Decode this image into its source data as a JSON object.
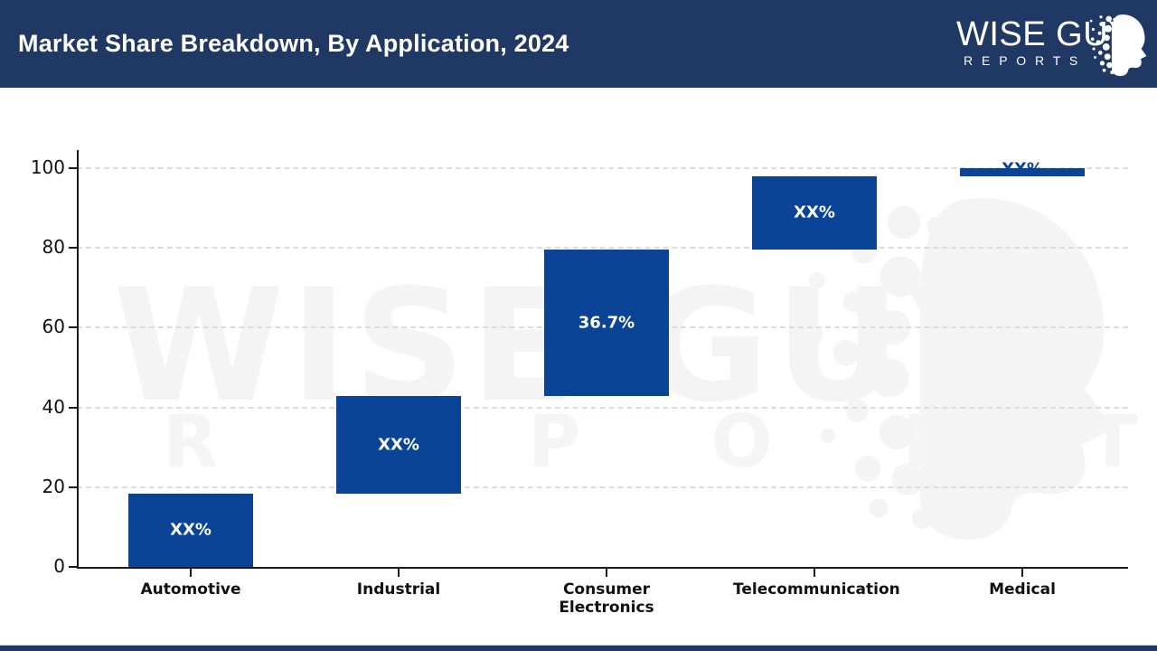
{
  "header": {
    "title": "Market Share Breakdown, By Application, 2024",
    "logo": {
      "name": "WISE GUY",
      "sub": "R E P O R T S"
    }
  },
  "watermark": {
    "line1": "WISE GUY",
    "line2": "R E P O R T S"
  },
  "colors": {
    "header_bg": "#1F3864",
    "footer_bg": "#1F3864",
    "bar": "#0B4397",
    "grid": "#dcdcdc",
    "axis": "#1a1a1a",
    "watermark": "#f4f4f4",
    "title_text": "#ffffff",
    "bar_label_light": "#ffffff"
  },
  "chart_data": {
    "type": "bar",
    "subtype": "waterfall",
    "title": "Market Share Breakdown, By Application, 2024",
    "xlabel": "",
    "ylabel": "",
    "ylim": [
      0,
      104.5
    ],
    "y_ticks": [
      0,
      20,
      40,
      60,
      80,
      100
    ],
    "grid": "horizontal-dashed",
    "legend": "none",
    "categories": [
      "Automotive",
      "Industrial",
      "Consumer Electronics",
      "Telecommunication",
      "Medical"
    ],
    "segments": [
      {
        "category": "Automotive",
        "start": 0,
        "end": 18.4,
        "value_label": "XX%",
        "label_style": "inside-light"
      },
      {
        "category": "Industrial",
        "start": 18.4,
        "end": 42.9,
        "value_label": "XX%",
        "label_style": "inside-light"
      },
      {
        "category": "Consumer Electronics",
        "start": 42.9,
        "end": 79.6,
        "value_label": "36.7%",
        "label_style": "inside-light"
      },
      {
        "category": "Telecommunication",
        "start": 79.6,
        "end": 97.9,
        "value_label": "XX%",
        "label_style": "inside-light"
      },
      {
        "category": "Medical",
        "start": 97.9,
        "end": 100,
        "value_label": "XX%",
        "label_style": "edge-dark"
      }
    ]
  }
}
